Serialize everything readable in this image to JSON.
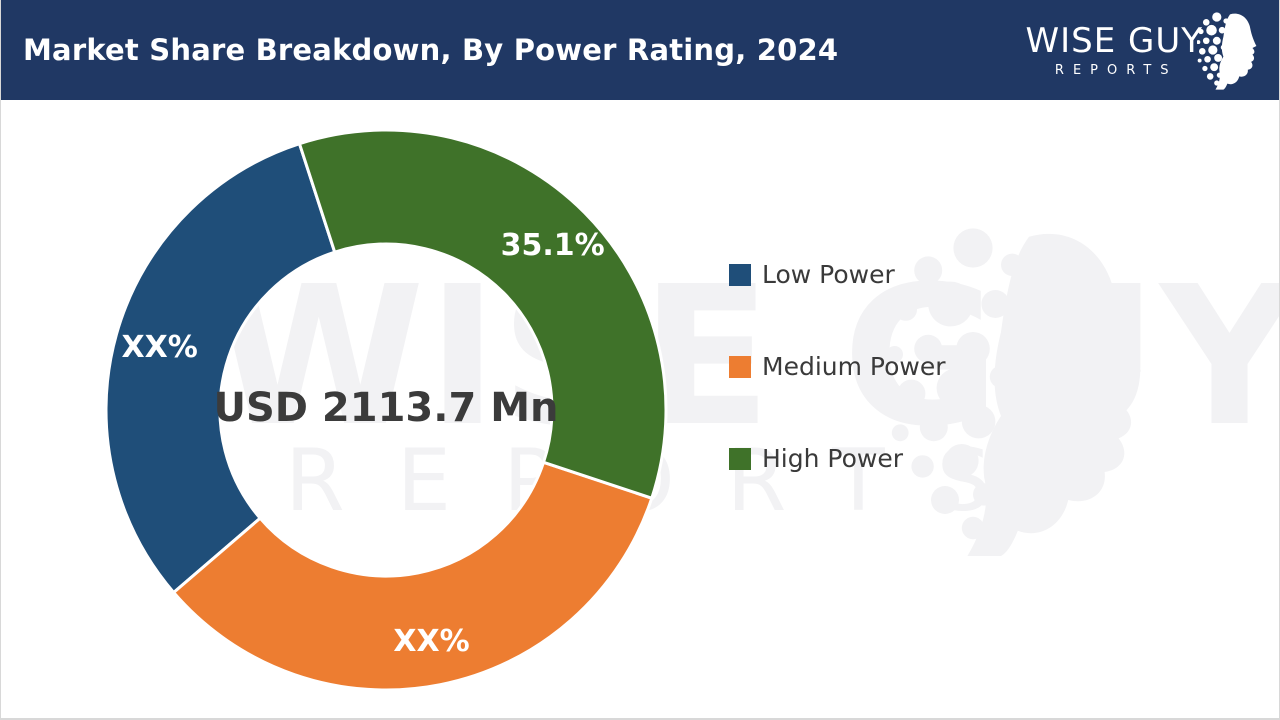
{
  "header": {
    "title": "Market Share Breakdown, By Power Rating, 2024",
    "logo": {
      "line1": "WISE GUY",
      "line2": "REPORTS"
    }
  },
  "colors": {
    "header_bg": "#203864",
    "low_power": "#1f4e79",
    "medium_power": "#ed7d31",
    "high_power": "#3f7229",
    "watermark": "#f2f2f4",
    "center_text": "#3b3b3b",
    "frame_border": "#d8d8d8"
  },
  "watermark": {
    "line1": "WISE GUY",
    "line2": "REPORTS"
  },
  "chart_data": {
    "type": "pie",
    "subtype": "donut",
    "title": "Market Share Breakdown, By Power Rating, 2024",
    "center_label": "USD 2113.7 Mn",
    "legend_position": "right",
    "start_angle_deg": -18,
    "direction": "counterclockwise",
    "segments": [
      {
        "name": "Low Power",
        "label": "XX%",
        "value_pct": 31.3,
        "color": "#1f4e79"
      },
      {
        "name": "Medium Power",
        "label": "XX%",
        "value_pct": 33.6,
        "color": "#ed7d31"
      },
      {
        "name": "High Power",
        "label": "35.1%",
        "value_pct": 35.1,
        "color": "#3f7229"
      }
    ]
  }
}
